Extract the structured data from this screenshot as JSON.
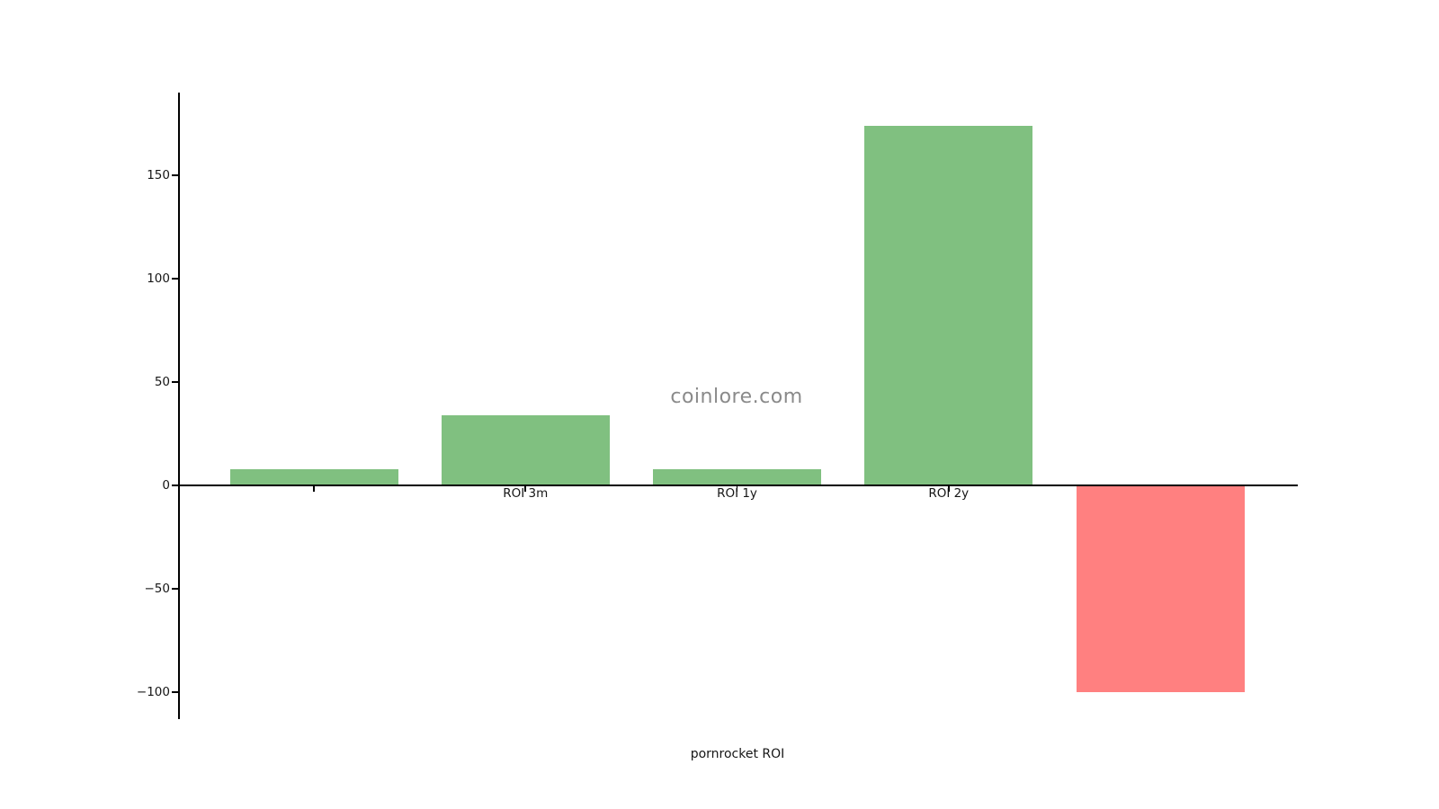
{
  "page": {
    "background_color": "#ffffff"
  },
  "chart_data": {
    "type": "bar",
    "title": "",
    "xlabel": "pornrocket ROI",
    "ylabel": "",
    "watermark": "coinlore.com",
    "categories": [
      "",
      "ROI 3m",
      "ROI 1y",
      "ROI 2y",
      ""
    ],
    "values": [
      8,
      34,
      8,
      174,
      -100
    ],
    "bar_colors": [
      "#80c080",
      "#80c080",
      "#80c080",
      "#80c080",
      "#ff8080"
    ],
    "positive_color": "#80c080",
    "negative_color": "#ff8080",
    "axis_color": "#000000",
    "text_color": "#161616",
    "watermark_color": "#8a8a8a",
    "yticks": [
      150,
      100,
      50,
      0,
      -50,
      -100
    ],
    "ytick_labels": [
      "150",
      "100",
      "50",
      "0",
      "−50",
      "−100"
    ],
    "ylim": [
      -113,
      190
    ],
    "grid": false,
    "legend": null
  }
}
